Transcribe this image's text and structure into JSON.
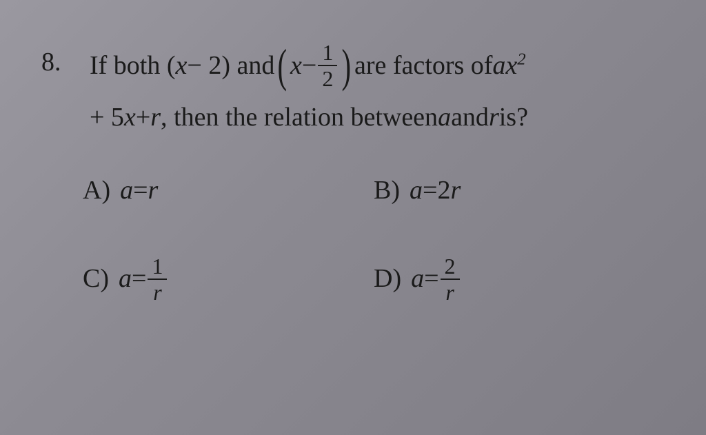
{
  "background_color_start": "#9a98a0",
  "background_color_end": "#7e7c84",
  "text_color": "#1a1a1a",
  "font_family": "Times New Roman",
  "question": {
    "number": "8.",
    "line1_prefix": "If both (",
    "line1_factor1_var": "x",
    "line1_factor1_op": " − 2) and ",
    "line1_factor2_var": "x",
    "line1_factor2_op": " − ",
    "line1_frac_num": "1",
    "line1_frac_den": "2",
    "line1_suffix": " are factors of ",
    "line1_poly_a": "ax",
    "line1_poly_exp": "2",
    "line2_prefix": "+ 5",
    "line2_var": "x",
    "line2_mid": " + ",
    "line2_r": "r",
    "line2_suffix": ", then the relation between ",
    "line2_a": "a",
    "line2_and": " and ",
    "line2_r2": "r",
    "line2_end": " is?"
  },
  "options": {
    "A": {
      "label": "A)",
      "lhs": "a",
      "eq": " = ",
      "rhs": "r"
    },
    "B": {
      "label": "B)",
      "lhs": "a",
      "eq": " = ",
      "rhs_coef": "2",
      "rhs_var": "r"
    },
    "C": {
      "label": "C)",
      "lhs": "a",
      "eq": " = ",
      "frac_num": "1",
      "frac_den": "r"
    },
    "D": {
      "label": "D)",
      "lhs": "a",
      "eq": " = ",
      "frac_num": "2",
      "frac_den": "r"
    }
  },
  "styling": {
    "question_fontsize": 38,
    "fraction_fontsize": 32,
    "big_paren_fontsize": 68,
    "options_fontsize": 38,
    "options_row_gap": 70,
    "options_col_gap": 40
  }
}
